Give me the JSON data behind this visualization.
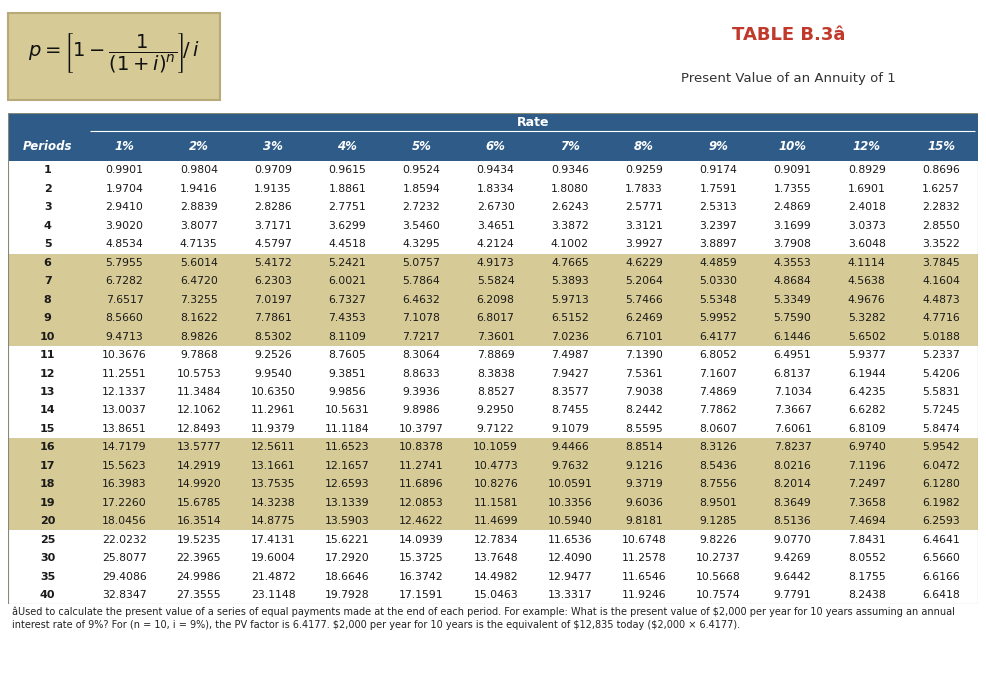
{
  "title_table": "TABLE B.3â",
  "subtitle": "Present Value of an Annuity of 1",
  "rate_label": "Rate",
  "col_headers": [
    "Periods",
    "1%",
    "2%",
    "3%",
    "4%",
    "5%",
    "6%",
    "7%",
    "8%",
    "9%",
    "10%",
    "12%",
    "15%"
  ],
  "periods": [
    1,
    2,
    3,
    4,
    5,
    6,
    7,
    8,
    9,
    10,
    11,
    12,
    13,
    14,
    15,
    16,
    17,
    18,
    19,
    20,
    25,
    30,
    35,
    40
  ],
  "data": [
    [
      0.9901,
      0.9804,
      0.9709,
      0.9615,
      0.9524,
      0.9434,
      0.9346,
      0.9259,
      0.9174,
      0.9091,
      0.8929,
      0.8696
    ],
    [
      1.9704,
      1.9416,
      1.9135,
      1.8861,
      1.8594,
      1.8334,
      1.808,
      1.7833,
      1.7591,
      1.7355,
      1.6901,
      1.6257
    ],
    [
      2.941,
      2.8839,
      2.8286,
      2.7751,
      2.7232,
      2.673,
      2.6243,
      2.5771,
      2.5313,
      2.4869,
      2.4018,
      2.2832
    ],
    [
      3.902,
      3.8077,
      3.7171,
      3.6299,
      3.546,
      3.4651,
      3.3872,
      3.3121,
      3.2397,
      3.1699,
      3.0373,
      2.855
    ],
    [
      4.8534,
      4.7135,
      4.5797,
      4.4518,
      4.3295,
      4.2124,
      4.1002,
      3.9927,
      3.8897,
      3.7908,
      3.6048,
      3.3522
    ],
    [
      5.7955,
      5.6014,
      5.4172,
      5.2421,
      5.0757,
      4.9173,
      4.7665,
      4.6229,
      4.4859,
      4.3553,
      4.1114,
      3.7845
    ],
    [
      6.7282,
      6.472,
      6.2303,
      6.0021,
      5.7864,
      5.5824,
      5.3893,
      5.2064,
      5.033,
      4.8684,
      4.5638,
      4.1604
    ],
    [
      7.6517,
      7.3255,
      7.0197,
      6.7327,
      6.4632,
      6.2098,
      5.9713,
      5.7466,
      5.5348,
      5.3349,
      4.9676,
      4.4873
    ],
    [
      8.566,
      8.1622,
      7.7861,
      7.4353,
      7.1078,
      6.8017,
      6.5152,
      6.2469,
      5.9952,
      5.759,
      5.3282,
      4.7716
    ],
    [
      9.4713,
      8.9826,
      8.5302,
      8.1109,
      7.7217,
      7.3601,
      7.0236,
      6.7101,
      6.4177,
      6.1446,
      5.6502,
      5.0188
    ],
    [
      10.3676,
      9.7868,
      9.2526,
      8.7605,
      8.3064,
      7.8869,
      7.4987,
      7.139,
      6.8052,
      6.4951,
      5.9377,
      5.2337
    ],
    [
      11.2551,
      10.5753,
      9.954,
      9.3851,
      8.8633,
      8.3838,
      7.9427,
      7.5361,
      7.1607,
      6.8137,
      6.1944,
      5.4206
    ],
    [
      12.1337,
      11.3484,
      10.635,
      9.9856,
      9.3936,
      8.8527,
      8.3577,
      7.9038,
      7.4869,
      7.1034,
      6.4235,
      5.5831
    ],
    [
      13.0037,
      12.1062,
      11.2961,
      10.5631,
      9.8986,
      9.295,
      8.7455,
      8.2442,
      7.7862,
      7.3667,
      6.6282,
      5.7245
    ],
    [
      13.8651,
      12.8493,
      11.9379,
      11.1184,
      10.3797,
      9.7122,
      9.1079,
      8.5595,
      8.0607,
      7.6061,
      6.8109,
      5.8474
    ],
    [
      14.7179,
      13.5777,
      12.5611,
      11.6523,
      10.8378,
      10.1059,
      9.4466,
      8.8514,
      8.3126,
      7.8237,
      6.974,
      5.9542
    ],
    [
      15.5623,
      14.2919,
      13.1661,
      12.1657,
      11.2741,
      10.4773,
      9.7632,
      9.1216,
      8.5436,
      8.0216,
      7.1196,
      6.0472
    ],
    [
      16.3983,
      14.992,
      13.7535,
      12.6593,
      11.6896,
      10.8276,
      10.0591,
      9.3719,
      8.7556,
      8.2014,
      7.2497,
      6.128
    ],
    [
      17.226,
      15.6785,
      14.3238,
      13.1339,
      12.0853,
      11.1581,
      10.3356,
      9.6036,
      8.9501,
      8.3649,
      7.3658,
      6.1982
    ],
    [
      18.0456,
      16.3514,
      14.8775,
      13.5903,
      12.4622,
      11.4699,
      10.594,
      9.8181,
      9.1285,
      8.5136,
      7.4694,
      6.2593
    ],
    [
      22.0232,
      19.5235,
      17.4131,
      15.6221,
      14.0939,
      12.7834,
      11.6536,
      10.6748,
      9.8226,
      9.077,
      7.8431,
      6.4641
    ],
    [
      25.8077,
      22.3965,
      19.6004,
      17.292,
      15.3725,
      13.7648,
      12.409,
      11.2578,
      10.2737,
      9.4269,
      8.0552,
      6.566
    ],
    [
      29.4086,
      24.9986,
      21.4872,
      18.6646,
      16.3742,
      14.4982,
      12.9477,
      11.6546,
      10.5668,
      9.6442,
      8.1755,
      6.6166
    ],
    [
      32.8347,
      27.3555,
      23.1148,
      19.7928,
      17.1591,
      15.0463,
      13.3317,
      11.9246,
      10.7574,
      9.7791,
      8.2438,
      6.6418
    ]
  ],
  "footnote_super": "â",
  "footnote_body": "Used to calculate the present value of a series of equal payments made at the end of each period. For example: What is the present value of $2,000 per year for 10 years assuming an annual interest rate of 9%? For (n = 10, i = 9%), the PV factor is 6.4177. $2,000 per year for 10 years is the equivalent of $12,835 today ($2,000 × 6.4177).",
  "header_bg": "#2e5b88",
  "header_text": "#ffffff",
  "formula_bg": "#d6ca96",
  "formula_border": "#b8aa78",
  "row_white_bg": "#ffffff",
  "row_tan_bg": "#e8e0c0",
  "highlight_bg": "#d6ca96",
  "table_title_color": "#c0392b",
  "outer_bg": "#ffffff",
  "table_outer_bg": "#e8e4d0",
  "footnote_color": "#222222"
}
